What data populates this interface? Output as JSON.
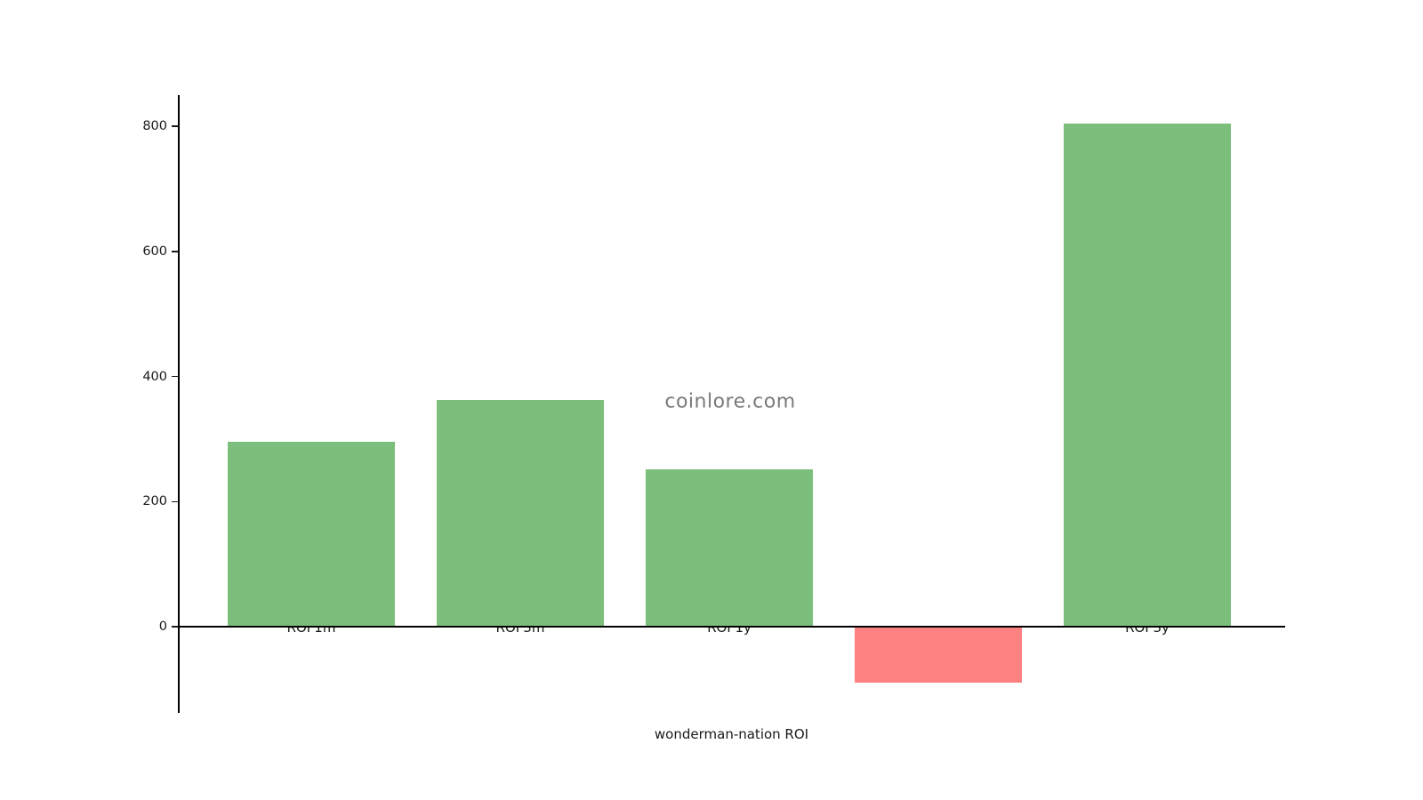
{
  "watermark": "coinlore.com",
  "chart_data": {
    "type": "bar",
    "title": "wonderman-nation ROI",
    "xlabel": "wonderman-nation ROI",
    "ylabel": "",
    "categories": [
      "ROI'1m",
      "ROI'3m",
      "ROI 1y",
      "",
      "ROI 3y"
    ],
    "values": [
      296,
      363,
      251,
      -90,
      805
    ],
    "y_ticks": [
      0,
      200,
      400,
      600,
      800
    ],
    "ylim": [
      -138,
      850
    ],
    "grid": false,
    "legend_position": "none",
    "positive_color": "#7cbe7c",
    "negative_color": "#fd8181",
    "axis_color": "#000000",
    "tick_label_color": "#1a1a1a",
    "watermark_color": "#7a7a7a",
    "notes": "fourth bar's x tick label is hidden behind the negative (red) bar"
  }
}
